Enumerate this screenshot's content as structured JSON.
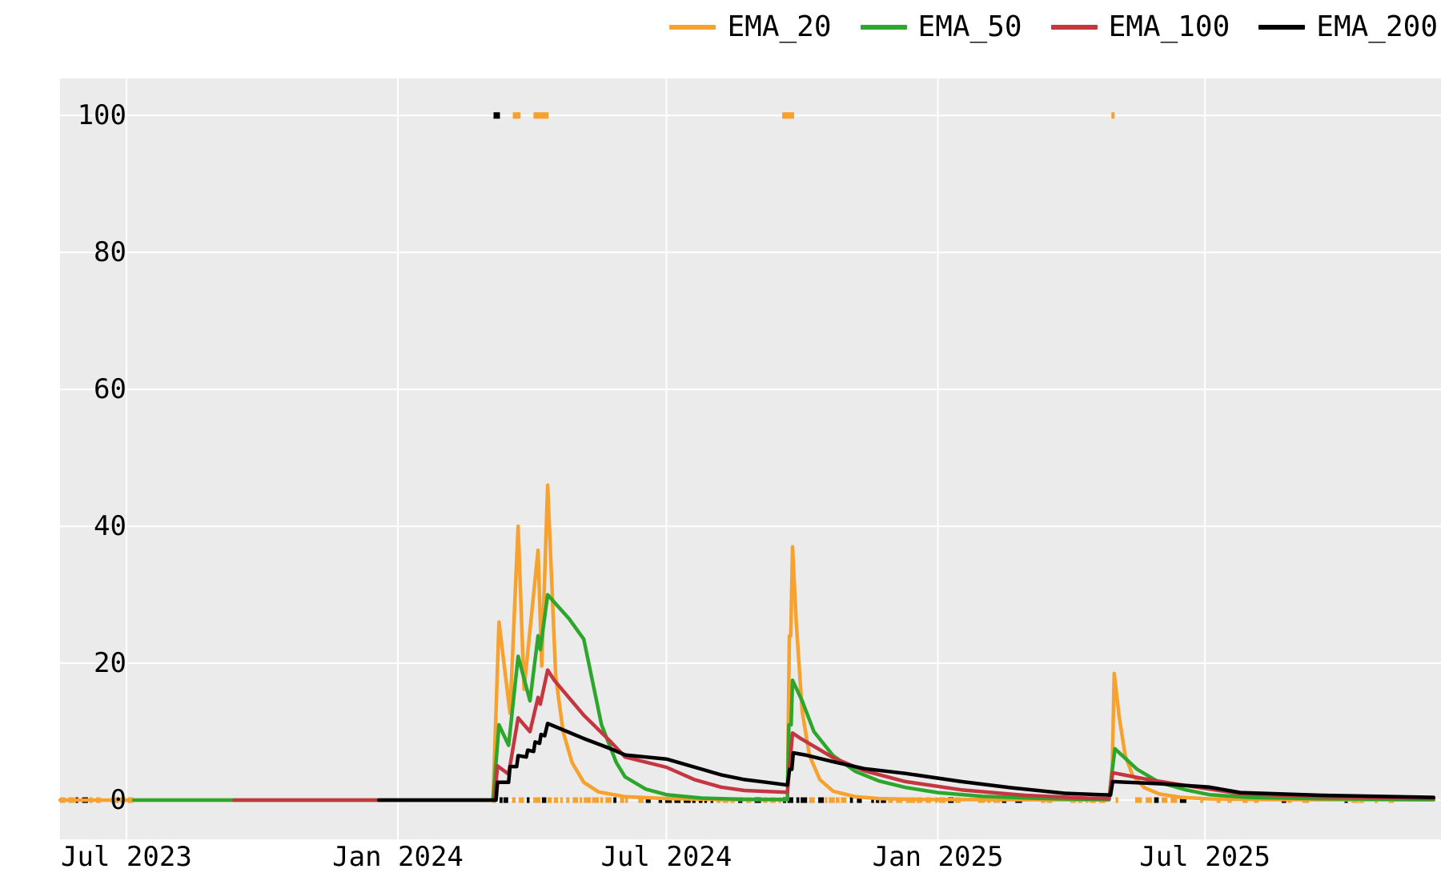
{
  "legend": {
    "items": [
      {
        "label": "EMA_20",
        "color": "#f7a12f"
      },
      {
        "label": "EMA_50",
        "color": "#2ca72c"
      },
      {
        "label": "EMA_100",
        "color": "#c43741"
      },
      {
        "label": "EMA_200",
        "color": "#000000"
      }
    ]
  },
  "chart_data": {
    "type": "line",
    "title": "",
    "xlabel": "",
    "ylabel": "",
    "x_unit": "days since 2023-07-01",
    "xlim": [
      -45,
      891
    ],
    "ylim": [
      -5.73,
      105.4
    ],
    "grid": true,
    "legend_position": "top-right",
    "plot_background": "#ebebeb",
    "gridline_color": "#ffffff",
    "x_ticks": [
      {
        "d": 0,
        "label": "Jul 2023"
      },
      {
        "d": 184,
        "label": "Jan 2024"
      },
      {
        "d": 366,
        "label": "Jul 2024"
      },
      {
        "d": 550,
        "label": "Jan 2025"
      },
      {
        "d": 731,
        "label": "Jul 2025"
      }
    ],
    "y_ticks": [
      {
        "v": 0,
        "label": "0"
      },
      {
        "v": 20,
        "label": "20"
      },
      {
        "v": 40,
        "label": "40"
      },
      {
        "v": 60,
        "label": "60"
      },
      {
        "v": 80,
        "label": "80"
      },
      {
        "v": 100,
        "label": "100"
      }
    ],
    "series": [
      {
        "name": "EMA_20",
        "color": "#f7a12f",
        "linewidth": 4.5,
        "points": [
          [
            -45,
            0
          ],
          [
            248.5,
            0
          ],
          [
            252.5,
            26
          ],
          [
            260,
            12.7
          ],
          [
            265.5,
            40
          ],
          [
            269.5,
            16.2
          ],
          [
            279,
            36.5
          ],
          [
            281.5,
            19.6
          ],
          [
            285.5,
            46
          ],
          [
            291,
            18
          ],
          [
            296,
            10
          ],
          [
            302,
            5.5
          ],
          [
            310,
            2.6
          ],
          [
            320,
            1.2
          ],
          [
            338,
            0.5
          ],
          [
            366,
            0.22
          ],
          [
            403,
            0.1
          ],
          [
            448,
            0.05
          ],
          [
            449.3,
            24
          ],
          [
            450.3,
            24
          ],
          [
            451.5,
            37
          ],
          [
            454,
            26
          ],
          [
            458,
            13
          ],
          [
            463,
            6.5
          ],
          [
            470,
            3
          ],
          [
            479,
            1.3
          ],
          [
            494,
            0.5
          ],
          [
            510,
            0.22
          ],
          [
            540,
            0.1
          ],
          [
            666,
            0.04
          ],
          [
            668.2,
            5
          ],
          [
            669.5,
            18.5
          ],
          [
            673,
            12
          ],
          [
            677,
            6.5
          ],
          [
            682,
            3.6
          ],
          [
            690,
            1.8
          ],
          [
            700,
            0.9
          ],
          [
            715,
            0.4
          ],
          [
            734,
            0.18
          ],
          [
            780,
            0.07
          ],
          [
            886,
            0.03
          ]
        ]
      },
      {
        "name": "EMA_50",
        "color": "#2ca72c",
        "linewidth": 4.5,
        "points": [
          [
            5,
            0
          ],
          [
            248.5,
            0
          ],
          [
            252.5,
            11
          ],
          [
            259,
            8
          ],
          [
            265.5,
            21
          ],
          [
            273.5,
            14.5
          ],
          [
            279,
            24
          ],
          [
            280.5,
            22
          ],
          [
            285.5,
            30
          ],
          [
            300,
            26.5
          ],
          [
            310,
            23.5
          ],
          [
            322,
            11
          ],
          [
            332,
            5.5
          ],
          [
            338,
            3.4
          ],
          [
            352,
            1.6
          ],
          [
            366,
            0.8
          ],
          [
            390,
            0.3
          ],
          [
            420,
            0.12
          ],
          [
            448,
            0.08
          ],
          [
            449,
            11
          ],
          [
            450.5,
            11
          ],
          [
            451.5,
            17.5
          ],
          [
            458,
            14.5
          ],
          [
            466,
            10
          ],
          [
            479,
            6.5
          ],
          [
            494,
            4.2
          ],
          [
            510,
            2.8
          ],
          [
            528,
            1.85
          ],
          [
            550,
            1.1
          ],
          [
            580,
            0.55
          ],
          [
            620,
            0.25
          ],
          [
            650,
            0.12
          ],
          [
            666,
            0.08
          ],
          [
            668,
            4
          ],
          [
            670,
            7.5
          ],
          [
            685,
            4.5
          ],
          [
            700,
            2.6
          ],
          [
            718,
            1.5
          ],
          [
            734,
            0.8
          ],
          [
            761,
            0.4
          ],
          [
            810,
            0.2
          ],
          [
            886,
            0.08
          ]
        ]
      },
      {
        "name": "EMA_100",
        "color": "#c43741",
        "linewidth": 4.5,
        "points": [
          [
            73,
            0
          ],
          [
            249.5,
            0
          ],
          [
            251.5,
            5
          ],
          [
            259,
            3.8
          ],
          [
            265.5,
            12
          ],
          [
            273.5,
            10
          ],
          [
            279,
            15
          ],
          [
            280.5,
            14
          ],
          [
            285.5,
            19
          ],
          [
            290,
            17.5
          ],
          [
            310,
            12.4
          ],
          [
            327,
            8.8
          ],
          [
            338,
            6.3
          ],
          [
            366,
            4.8
          ],
          [
            385,
            3
          ],
          [
            403,
            1.9
          ],
          [
            419,
            1.4
          ],
          [
            448,
            1.15
          ],
          [
            449.5,
            5
          ],
          [
            451.5,
            9.8
          ],
          [
            457,
            9
          ],
          [
            479,
            6.2
          ],
          [
            500,
            4.3
          ],
          [
            528,
            2.7
          ],
          [
            566,
            1.5
          ],
          [
            609,
            0.7
          ],
          [
            650,
            0.3
          ],
          [
            666,
            0.2
          ],
          [
            668.5,
            4
          ],
          [
            690,
            3.1
          ],
          [
            710,
            2.4
          ],
          [
            734,
            1.6
          ],
          [
            755,
            0.95
          ],
          [
            810,
            0.5
          ],
          [
            886,
            0.25
          ]
        ]
      },
      {
        "name": "EMA_200",
        "color": "#000000",
        "linewidth": 4.5,
        "points": [
          [
            171,
            0
          ],
          [
            250.5,
            0
          ],
          [
            251.5,
            2.6
          ],
          [
            259,
            2.6
          ],
          [
            260,
            4.9
          ],
          [
            264.5,
            4.9
          ],
          [
            265.5,
            6.5
          ],
          [
            271,
            6.3
          ],
          [
            272,
            7.3
          ],
          [
            276,
            7.1
          ],
          [
            277,
            8.5
          ],
          [
            280,
            8.3
          ],
          [
            281,
            9.6
          ],
          [
            283.5,
            9.4
          ],
          [
            285.5,
            11.2
          ],
          [
            291,
            10.7
          ],
          [
            310,
            9
          ],
          [
            327,
            7.6
          ],
          [
            338,
            6.6
          ],
          [
            366,
            6
          ],
          [
            403,
            3.7
          ],
          [
            419,
            3
          ],
          [
            434,
            2.6
          ],
          [
            448,
            2.2
          ],
          [
            449.5,
            4.5
          ],
          [
            451,
            4.5
          ],
          [
            452,
            6.9
          ],
          [
            460,
            6.6
          ],
          [
            479,
            5.6
          ],
          [
            500,
            4.6
          ],
          [
            528,
            3.9
          ],
          [
            566,
            2.7
          ],
          [
            600,
            1.8
          ],
          [
            636,
            1
          ],
          [
            660,
            0.8
          ],
          [
            667,
            0.75
          ],
          [
            668.5,
            2.7
          ],
          [
            700,
            2.4
          ],
          [
            734,
            1.9
          ],
          [
            755,
            1.1
          ],
          [
            810,
            0.7
          ],
          [
            886,
            0.4
          ]
        ]
      }
    ],
    "markers_at_100": [
      {
        "color": "#000000",
        "w": 8,
        "days": [
          251
        ]
      },
      {
        "color": "#f7a12f",
        "w": 4,
        "days": [
          263,
          264.5,
          266,
          277,
          278.5,
          280,
          282,
          283.5,
          285,
          445.5,
          447,
          448.5,
          450,
          451.5,
          668.7
        ]
      }
    ],
    "baseline_band": {
      "y_value": 0,
      "colors": {
        "primary": "#f7a12f",
        "secondary": "#000000"
      },
      "segments": [
        {
          "from": -45,
          "to": 3,
          "density": 0.9,
          "black_ratio": 0.45
        },
        {
          "from": 248,
          "to": 530,
          "density": 0.9,
          "black_ratio": 0.38
        },
        {
          "from": 530,
          "to": 740,
          "density": 0.7,
          "black_ratio": 0.3
        },
        {
          "from": 740,
          "to": 891,
          "density": 0.45,
          "black_ratio": 0.2
        }
      ]
    }
  }
}
